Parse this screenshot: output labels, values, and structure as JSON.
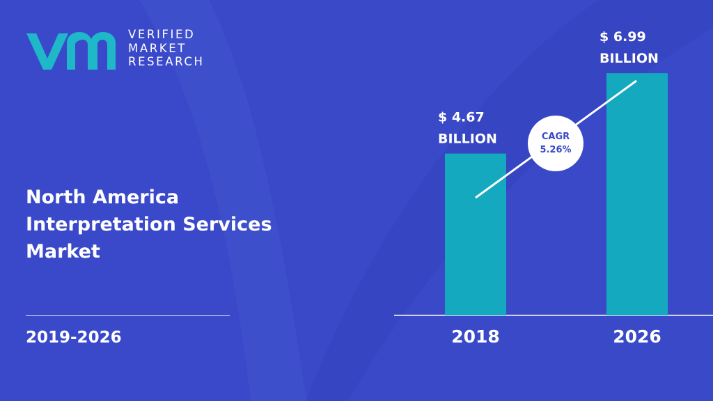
{
  "brand": {
    "logo_lines": [
      "VERIFIED",
      "MARKET",
      "RESEARCH"
    ]
  },
  "title_lines": [
    "North America",
    "Interpretation Services",
    "Market"
  ],
  "period": "2019-2026",
  "colors": {
    "background": "#3a49c8",
    "bar": "#15a9c0",
    "logo_mark": "#1eb8c9",
    "cagr_circle": "#ffffff",
    "cagr_text": "#3a49c8"
  },
  "chart_data": {
    "type": "bar",
    "categories": [
      "2018",
      "2026"
    ],
    "values": [
      4.67,
      6.99
    ],
    "value_labels": [
      [
        "$ 4.67",
        "BILLION"
      ],
      [
        "$ 6.99",
        "BILLION"
      ]
    ],
    "cagr_lines": [
      "CAGR",
      "5.26%"
    ],
    "ylim": [
      0,
      8.5
    ],
    "grid": false,
    "legend": "none"
  }
}
